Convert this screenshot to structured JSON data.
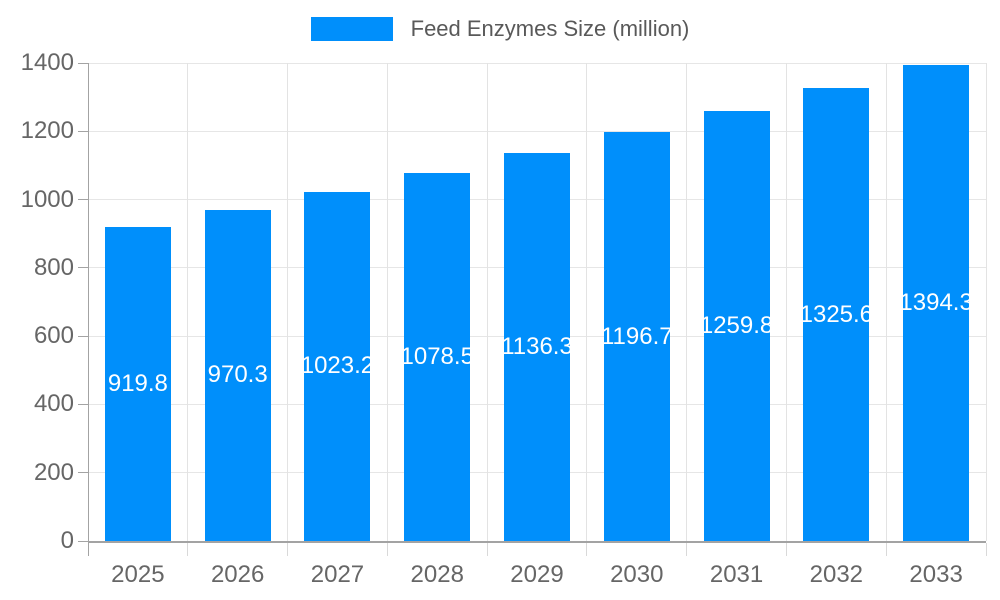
{
  "legend": {
    "label": "Feed Enzymes Size (million)",
    "swatch_color": "#008FFB"
  },
  "chart_data": {
    "type": "bar",
    "title": "Feed Enzymes Size (million)",
    "categories": [
      "2025",
      "2026",
      "2027",
      "2028",
      "2029",
      "2030",
      "2031",
      "2032",
      "2033"
    ],
    "values": [
      919.8,
      970.3,
      1023.2,
      1078.5,
      1136.3,
      1196.7,
      1259.8,
      1325.6,
      1394.3
    ],
    "value_labels": [
      "919.8",
      "970.3",
      "1023.2",
      "1078.5",
      "1136.3",
      "1196.7",
      "1259.8",
      "1325.6",
      "1394.3"
    ],
    "xlabel": "",
    "ylabel": "",
    "ylim": [
      0,
      1400
    ],
    "yticks": [
      0,
      200,
      400,
      600,
      800,
      1000,
      1200,
      1400
    ],
    "grid": true,
    "legend_position": "top",
    "bar_color": "#008FFB",
    "value_label_color": "#ffffff"
  },
  "colors": {
    "bar": "#008FFB",
    "grid_h": "#e6e6e6",
    "grid_v": "#e3e3e3",
    "axis": "#a3a3a3",
    "axis_text": "#666666",
    "legend_text": "#595959",
    "background": "#ffffff"
  }
}
